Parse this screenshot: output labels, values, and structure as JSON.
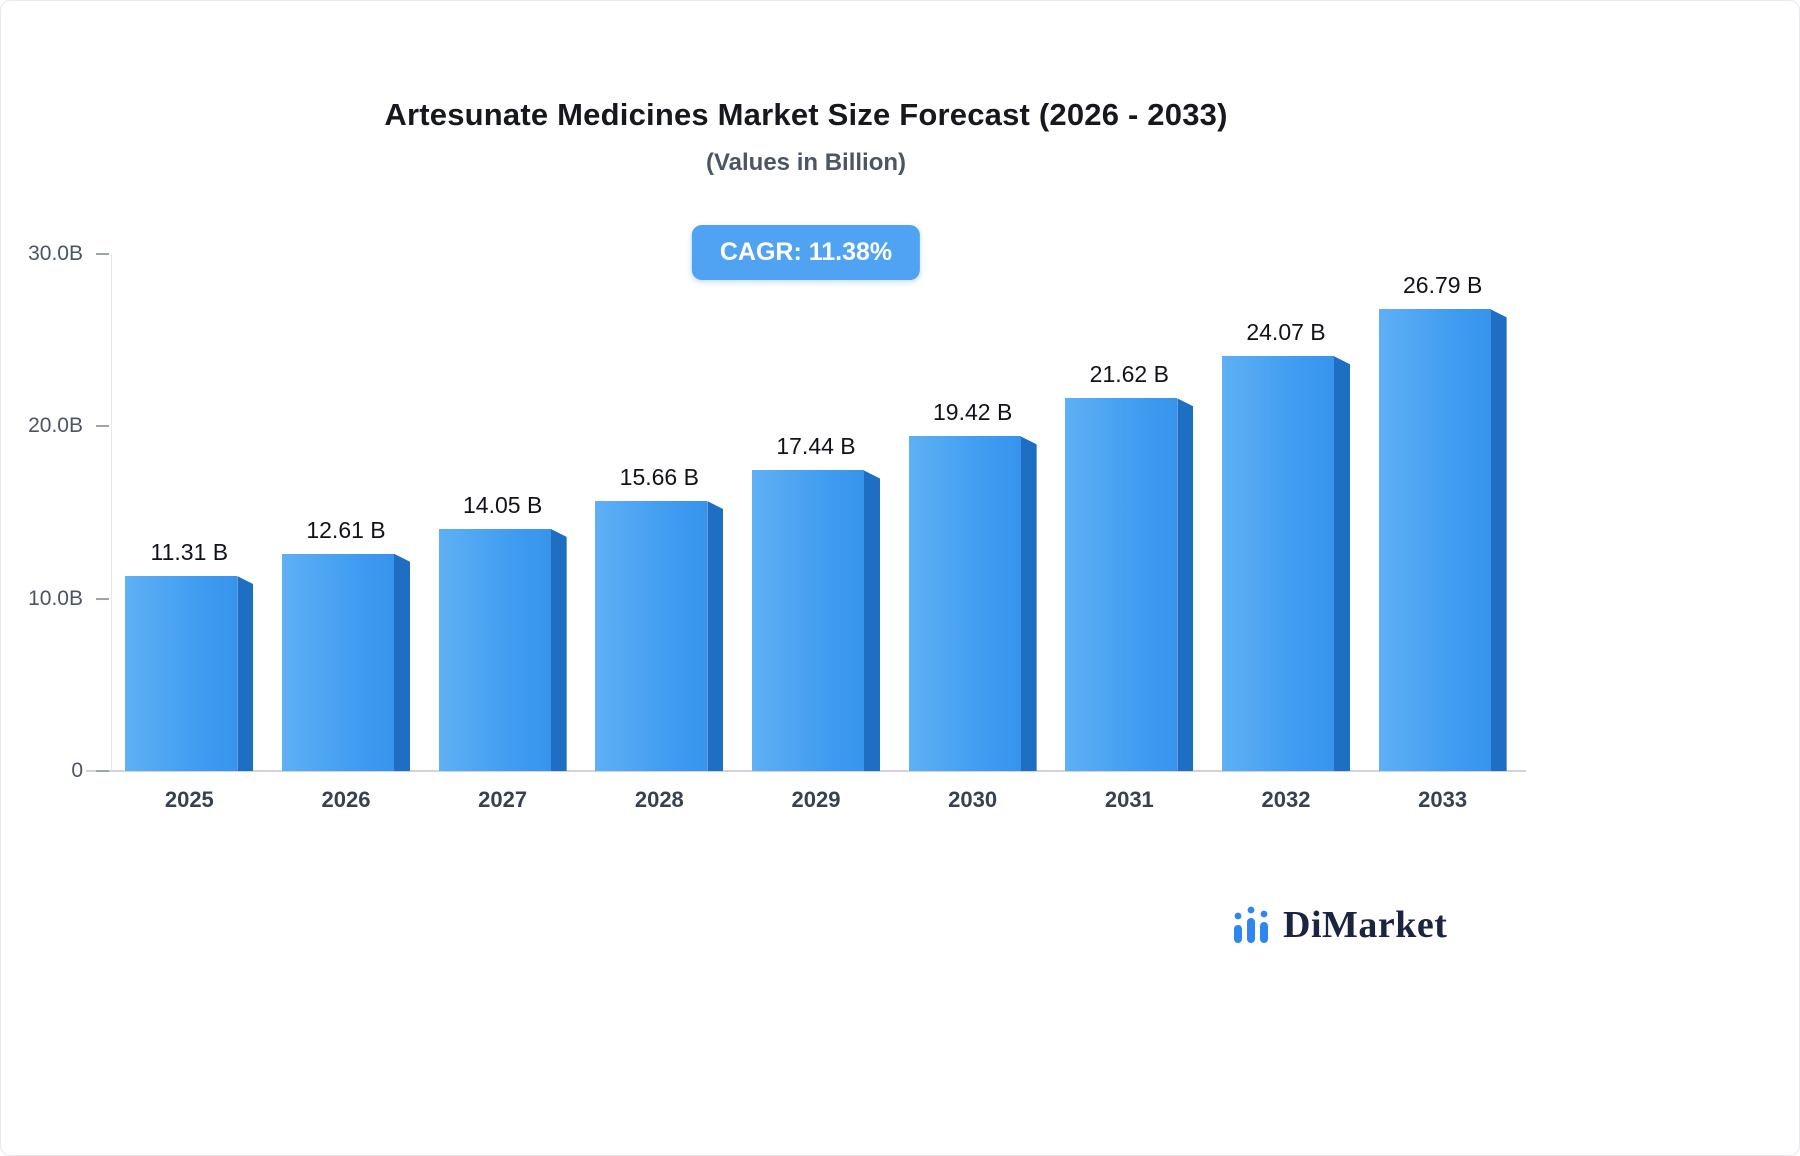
{
  "chart_data": {
    "type": "bar",
    "title": "Artesunate Medicines Market Size Forecast (2026 - 2033)",
    "subtitle": "(Values in Billion)",
    "cagr_label": "CAGR: 11.38%",
    "categories": [
      "2025",
      "2026",
      "2027",
      "2028",
      "2029",
      "2030",
      "2031",
      "2032",
      "2033"
    ],
    "values": [
      11.31,
      12.61,
      14.05,
      15.66,
      17.44,
      19.42,
      21.62,
      24.07,
      26.79
    ],
    "value_labels": [
      "11.31 B",
      "12.61 B",
      "14.05 B",
      "15.66 B",
      "17.44 B",
      "19.42 B",
      "21.62 B",
      "24.07 B",
      "26.79 B"
    ],
    "yticks": [
      "30.0B",
      "20.0B",
      "10.0B",
      "0"
    ],
    "ylim": [
      0,
      30
    ],
    "legend": "none",
    "grid": "off",
    "colors": {
      "bar_front_light": "#5fb0f4",
      "bar_front": "#3e9bf0",
      "bar_side": "#1e6ec4",
      "badge_bg": "#4fa3f2",
      "badge_text": "#ffffff"
    }
  },
  "branding": {
    "logo_text": "DiMarket",
    "logo_icon": "bar-chart-icon",
    "logo_color": "#1c2540",
    "logo_icon_color": "#2e86f0"
  }
}
